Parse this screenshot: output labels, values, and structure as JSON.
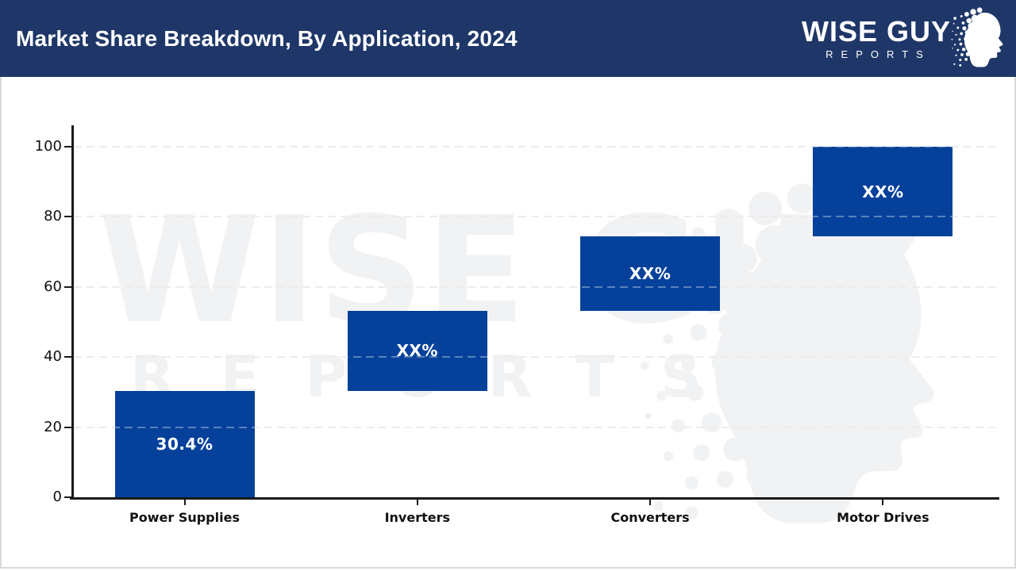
{
  "header": {
    "title": "Market Share Breakdown, By Application, 2024",
    "logo": {
      "line1": "WISE GUY",
      "line2": "REPORTS"
    }
  },
  "watermark": {
    "line1": "WISE GUY",
    "line2": "REPORTS"
  },
  "colors": {
    "header_bg": "#1f3768",
    "bar": "#05419a",
    "bar_label": "#ffffff",
    "grid": "#e2e2e2",
    "axis": "#1a1a1a",
    "watermark": "#f1f2f4",
    "panel_border": "#d9d9d9"
  },
  "chart_data": {
    "type": "bar",
    "subtype": "waterfall",
    "title": "Market Share Breakdown, By Application, 2024",
    "categories": [
      "Power Supplies",
      "Inverters",
      "Converters",
      "Motor Drives"
    ],
    "segments": [
      {
        "category": "Power Supplies",
        "start": 0,
        "end": 30.4,
        "label": "30.4%"
      },
      {
        "category": "Inverters",
        "start": 30.4,
        "end": 53.2,
        "label": "XX%"
      },
      {
        "category": "Converters",
        "start": 53.2,
        "end": 74.4,
        "label": "XX%"
      },
      {
        "category": "Motor Drives",
        "start": 74.4,
        "end": 100,
        "label": "XX%"
      }
    ],
    "yticks": [
      0,
      20,
      40,
      60,
      80,
      100
    ],
    "ylim": [
      0,
      105
    ],
    "xlabel": "",
    "ylabel": "",
    "grid": "horizontal-dashed",
    "legend": null
  }
}
